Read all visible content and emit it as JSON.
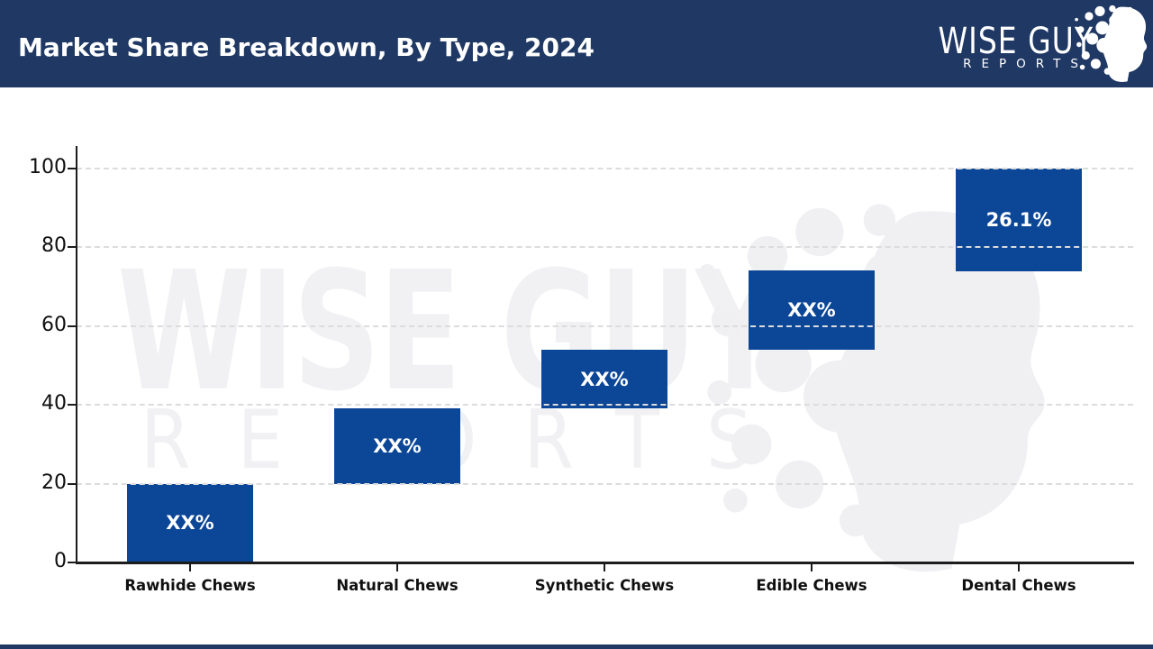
{
  "header": {
    "title": "Market Share Breakdown, By Type, 2024"
  },
  "brand": {
    "name": "WISE GUY",
    "sub": "REPORTS"
  },
  "watermark": {
    "line1": "WISE GUY",
    "line2": "REPORTS"
  },
  "colors": {
    "header_bg": "#1F3864",
    "bar": "#0B4697",
    "bar_label": "#FFFFFF",
    "grid": "#DCDCDC",
    "watermark": "#F1F1F4",
    "axis": "#1C1C1C"
  },
  "chart_data": {
    "type": "bar",
    "subtype": "waterfall",
    "title": "Market Share Breakdown, By Type, 2024",
    "categories": [
      "Rawhide Chews",
      "Natural Chews",
      "Synthetic Chews",
      "Edible Chews",
      "Dental Chews"
    ],
    "segments": [
      [
        0,
        20
      ],
      [
        20,
        39
      ],
      [
        39,
        54
      ],
      [
        54,
        74
      ],
      [
        73.9,
        100
      ]
    ],
    "bar_labels": [
      "XX%",
      "XX%",
      "XX%",
      "XX%",
      "26.1%"
    ],
    "values_shown": {
      "Dental Chews": "26.1%"
    },
    "xlabel": "",
    "ylabel": "",
    "ylim": [
      0,
      100
    ],
    "yticks": [
      0,
      20,
      40,
      60,
      80,
      100
    ],
    "grid": "horizontal-dashed",
    "legend": "none"
  }
}
